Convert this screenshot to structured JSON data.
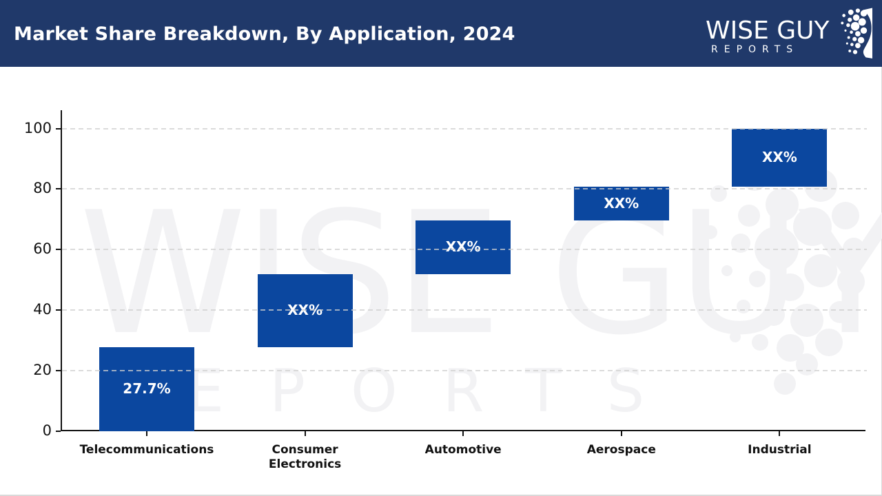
{
  "header": {
    "title": "Market Share Breakdown, By Application, 2024",
    "logo": {
      "line1": "WISE GUY",
      "line2": "REPORTS"
    }
  },
  "watermark": {
    "line1": "WISE GUY",
    "line2": "REPORTS"
  },
  "colors": {
    "header_bg": "#20396A",
    "bar": "#0B479F",
    "grid": "#CFCFCF",
    "watermark": "#F2F2F4",
    "axis": "#111111",
    "bar_label": "#FFFFFF"
  },
  "chart_data": {
    "type": "bar",
    "subtype": "waterfall",
    "title": "Market Share Breakdown, By Application, 2024",
    "categories": [
      "Telecommunications",
      "Consumer Electronics",
      "Automotive",
      "Aerospace",
      "Industrial"
    ],
    "category_label_lines": [
      [
        "Telecommunications"
      ],
      [
        "Consumer",
        "Electronics"
      ],
      [
        "Automotive"
      ],
      [
        "Aerospace"
      ],
      [
        "Industrial"
      ]
    ],
    "segments": [
      {
        "category": "Telecommunications",
        "start": 0,
        "end": 27.7,
        "value": 27.7,
        "label": "27.7%"
      },
      {
        "category": "Consumer Electronics",
        "start": 27.7,
        "end": 51.8,
        "value": 24.1,
        "label": "XX%"
      },
      {
        "category": "Automotive",
        "start": 51.8,
        "end": 69.6,
        "value": 17.8,
        "label": "XX%"
      },
      {
        "category": "Aerospace",
        "start": 69.6,
        "end": 80.7,
        "value": 11.1,
        "label": "XX%"
      },
      {
        "category": "Industrial",
        "start": 80.7,
        "end": 100,
        "value": 19.3,
        "label": "XX%"
      }
    ],
    "yticks": [
      0,
      20,
      40,
      60,
      80,
      100
    ],
    "ylim": [
      0,
      106
    ],
    "xlabel": "",
    "ylabel": "",
    "grid": "horizontal dashed",
    "legend": "none"
  }
}
